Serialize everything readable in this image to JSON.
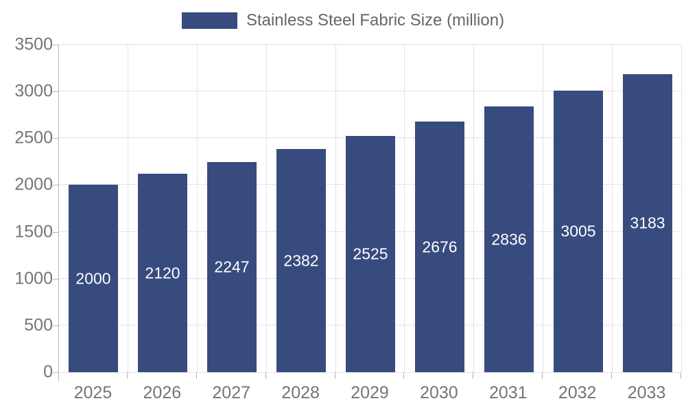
{
  "legend": {
    "label": "Stainless Steel Fabric Size (million)"
  },
  "colors": {
    "bar": "#374B7E",
    "grid": "#E3E3E8",
    "axis": "#B3B3BB",
    "tick_label": "#757575",
    "legend_text": "#666666",
    "bar_label": "#FFFFFF",
    "background": "#FFFFFF"
  },
  "chart_data": {
    "type": "bar",
    "title": "",
    "xlabel": "",
    "ylabel": "",
    "categories": [
      "2025",
      "2026",
      "2027",
      "2028",
      "2029",
      "2030",
      "2031",
      "2032",
      "2033"
    ],
    "series": [
      {
        "name": "Stainless Steel Fabric Size (million)",
        "values": [
          2000,
          2120,
          2247,
          2382,
          2525,
          2676,
          2836,
          3005,
          3183
        ]
      }
    ],
    "ylim": [
      0,
      3500
    ],
    "ytick_step": 500,
    "yticks": [
      0,
      500,
      1000,
      1500,
      2000,
      2500,
      3000,
      3500
    ],
    "grid": true,
    "legend_position": "top-center",
    "bar_label_position": "center",
    "bar_label_color": "#FFFFFF"
  }
}
